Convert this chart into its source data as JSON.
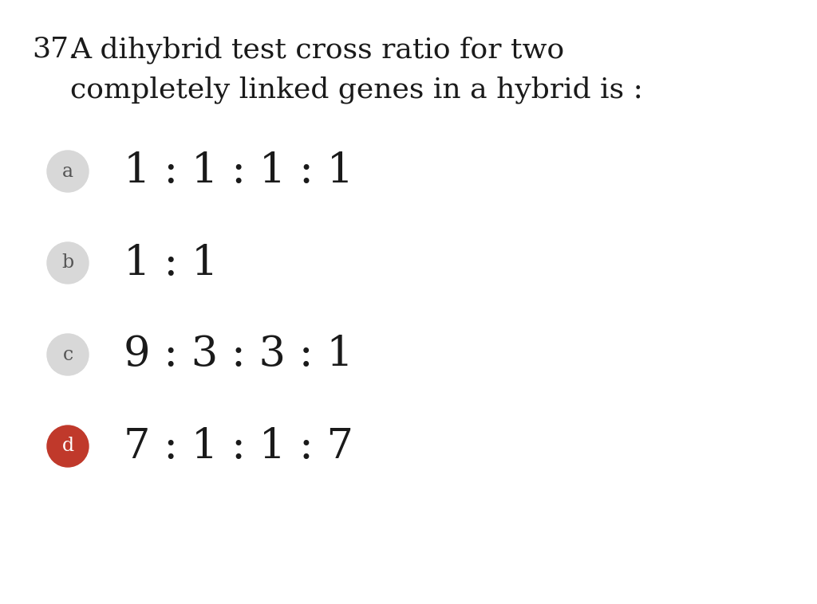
{
  "background_color": "#ffffff",
  "question_number": "37.",
  "question_text_line1": "A dihybrid test cross ratio for two",
  "question_text_line2": "completely linked genes in a hybrid is :",
  "options": [
    {
      "label": "a",
      "text": "1 : 1 : 1 : 1",
      "correct": false
    },
    {
      "label": "b",
      "text": "1 : 1",
      "correct": false
    },
    {
      "label": "c",
      "text": "9 : 3 : 3 : 1",
      "correct": false
    },
    {
      "label": "d",
      "text": "7 : 1 : 1 : 7",
      "correct": true
    }
  ],
  "circle_color_default": "#d8d8d8",
  "circle_color_correct": "#c0392b",
  "label_color_default": "#555555",
  "label_color_correct": "#ffffff",
  "question_number_color": "#1a1a1a",
  "question_text_color": "#1a1a1a",
  "option_text_color": "#1a1a1a",
  "question_fontsize": 26,
  "option_fontsize": 38,
  "label_fontsize": 17,
  "fig_width": 10.24,
  "fig_height": 7.58
}
